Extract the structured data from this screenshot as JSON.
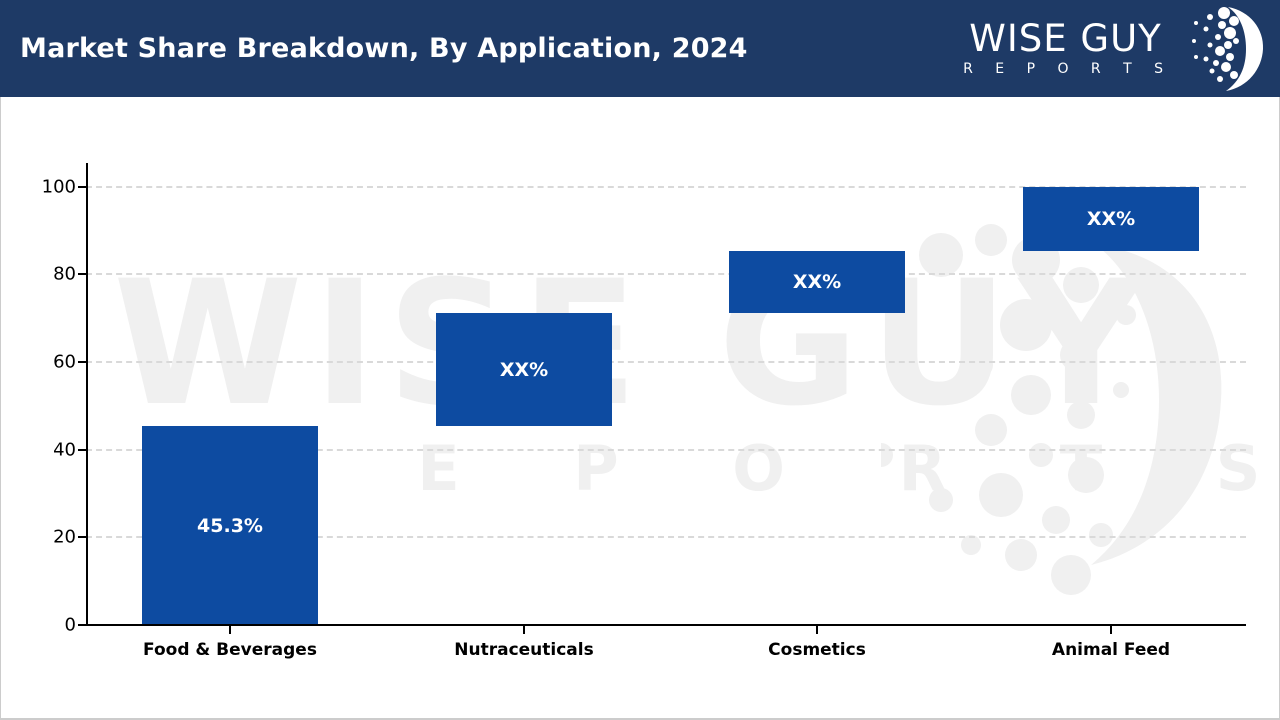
{
  "header": {
    "title": "Market Share Breakdown, By Application, 2024",
    "logo": {
      "wordmark": "WISE GUY",
      "subtitle": "R E P O R T S",
      "icon": "dotted-head-profile-icon"
    }
  },
  "watermark": {
    "wordmark": "WISE GUY",
    "subtitle": "R E P O R T S",
    "icon": "dotted-head-profile-icon"
  },
  "chart_data": {
    "type": "bar",
    "subtype": "waterfall",
    "title": "Market Share Breakdown, By Application, 2024",
    "categories": [
      "Food & Beverages",
      "Nutraceuticals",
      "Cosmetics",
      "Animal Feed"
    ],
    "bars": [
      {
        "category": "Food & Beverages",
        "start": 0,
        "end": 45.3,
        "label": "45.3%"
      },
      {
        "category": "Nutraceuticals",
        "start": 45.3,
        "end": 71.1,
        "label": "XX%"
      },
      {
        "category": "Cosmetics",
        "start": 71.1,
        "end": 85.3,
        "label": "XX%"
      },
      {
        "category": "Animal Feed",
        "start": 85.3,
        "end": 100,
        "label": "XX%"
      }
    ],
    "yticks": [
      0,
      20,
      40,
      60,
      80,
      100
    ],
    "ylim": [
      0,
      105.3
    ],
    "xlabel": "",
    "ylabel": "",
    "grid": "horizontal-dashed",
    "legend": "none"
  },
  "colors": {
    "header_bg": "#1e3a66",
    "bar": "#0d4ba1",
    "bar_label": "#ffffff",
    "gridline": "#d9d9d9",
    "axis": "#000000",
    "watermark": "#f0f0f0",
    "canvas_border": "#cccccc"
  }
}
